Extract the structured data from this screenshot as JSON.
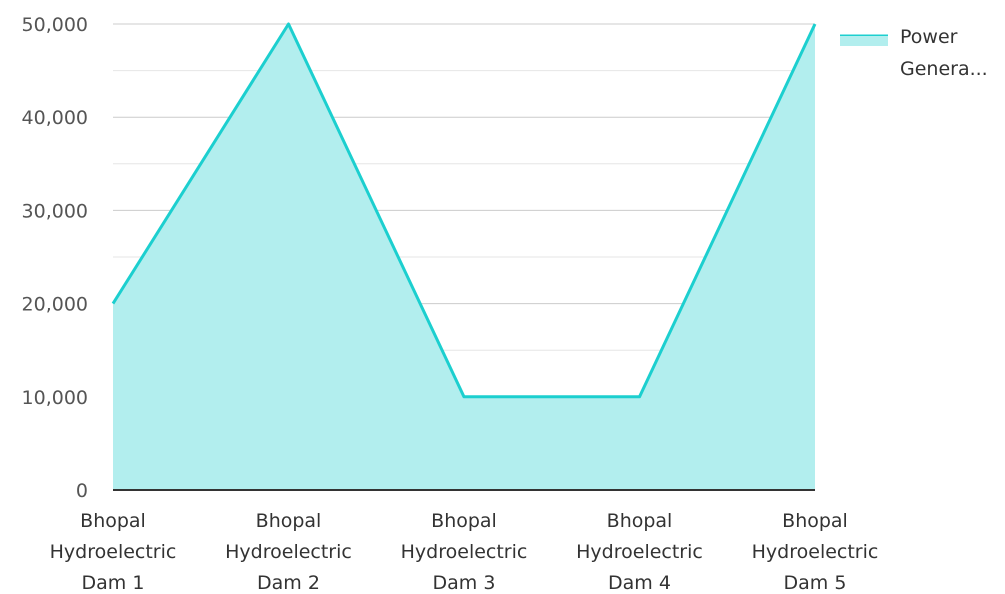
{
  "chart_data": {
    "type": "area",
    "categories": [
      [
        "Bhopal",
        "Hydroelectric",
        "Dam 1"
      ],
      [
        "Bhopal",
        "Hydroelectric",
        "Dam 2"
      ],
      [
        "Bhopal",
        "Hydroelectric",
        "Dam 3"
      ],
      [
        "Bhopal",
        "Hydroelectric",
        "Dam 4"
      ],
      [
        "Bhopal",
        "Hydroelectric",
        "Dam 5"
      ]
    ],
    "series": [
      {
        "name": "Power Genera...",
        "values": [
          20000,
          50000,
          10000,
          10000,
          50000
        ]
      }
    ],
    "legend": {
      "lines": [
        "Power",
        "Genera..."
      ],
      "position": "top-right"
    },
    "yticks": [
      "0",
      "10,000",
      "20,000",
      "30,000",
      "40,000",
      "50,000"
    ],
    "ylim": [
      0,
      50000
    ],
    "grid": true,
    "colors": {
      "line": "#1ccfcf",
      "fill": "#b2eeee",
      "grid": "#cccccc",
      "minor_grid": "#e6e6e6",
      "axis": "#333333"
    }
  }
}
